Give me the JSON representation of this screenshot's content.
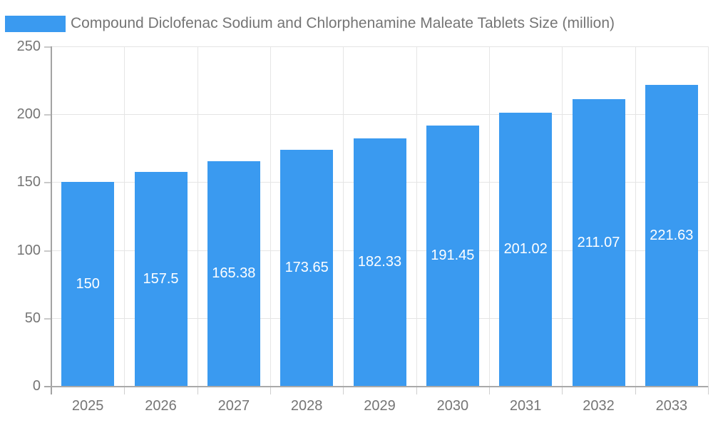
{
  "chart_data": {
    "type": "bar",
    "title": "Compound Diclofenac Sodium and Chlorphenamine Maleate Tablets Size (million)",
    "categories": [
      "2025",
      "2026",
      "2027",
      "2028",
      "2029",
      "2030",
      "2031",
      "2032",
      "2033"
    ],
    "values": [
      150,
      157.5,
      165.38,
      173.65,
      182.33,
      191.45,
      201.02,
      211.07,
      221.63
    ],
    "value_labels": [
      "150",
      "157.5",
      "165.38",
      "173.65",
      "182.33",
      "191.45",
      "201.02",
      "211.07",
      "221.63"
    ],
    "xlabel": "",
    "ylabel": "",
    "ylim": [
      0,
      250
    ],
    "yticks": [
      0,
      50,
      100,
      150,
      200,
      250
    ],
    "grid": true,
    "legend_position": "top-left",
    "value_label_position": "inside-center",
    "colors": {
      "bar": "#3A9AF0",
      "value_label": "#ffffff",
      "text": "#757575",
      "axis": "#a9a9a9",
      "grid": "#e5e5e5",
      "background": "#ffffff"
    }
  }
}
